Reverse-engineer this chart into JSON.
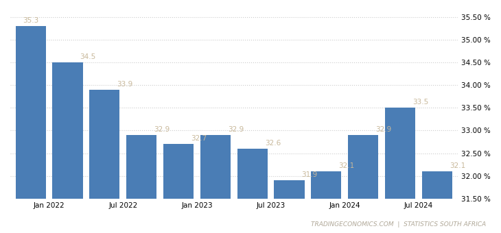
{
  "bars": [
    {
      "value": 35.3,
      "x": 0
    },
    {
      "value": 34.5,
      "x": 1
    },
    {
      "value": 33.9,
      "x": 2
    },
    {
      "value": 32.9,
      "x": 3
    },
    {
      "value": 32.7,
      "x": 4
    },
    {
      "value": 32.9,
      "x": 5
    },
    {
      "value": 32.6,
      "x": 6
    },
    {
      "value": 31.9,
      "x": 7
    },
    {
      "value": 32.1,
      "x": 8
    },
    {
      "value": 32.9,
      "x": 9
    },
    {
      "value": 33.5,
      "x": 10
    },
    {
      "value": 32.1,
      "x": 11
    }
  ],
  "bar_color": "#4a7db5",
  "bar_label_color": "#c8b89a",
  "xtick_positions": [
    0.5,
    2.5,
    4.5,
    6.5,
    8.5,
    10.5
  ],
  "xtick_labels": [
    "Jan 2022",
    "Jul 2022",
    "Jan 2023",
    "Jul 2023",
    "Jan 2024",
    "Jul 2024"
  ],
  "ylim": [
    31.5,
    35.65
  ],
  "yticks": [
    31.5,
    32.0,
    32.5,
    33.0,
    33.5,
    34.0,
    34.5,
    35.0,
    35.5
  ],
  "grid_color": "#cccccc",
  "background_color": "#ffffff",
  "footer_text": "TRADINGECONOMICS.COM  |  STATISTICS SOUTH AFRICA",
  "footer_color": "#b0a898",
  "label_fontsize": 7.5,
  "axis_fontsize": 7.5,
  "footer_fontsize": 6.5
}
